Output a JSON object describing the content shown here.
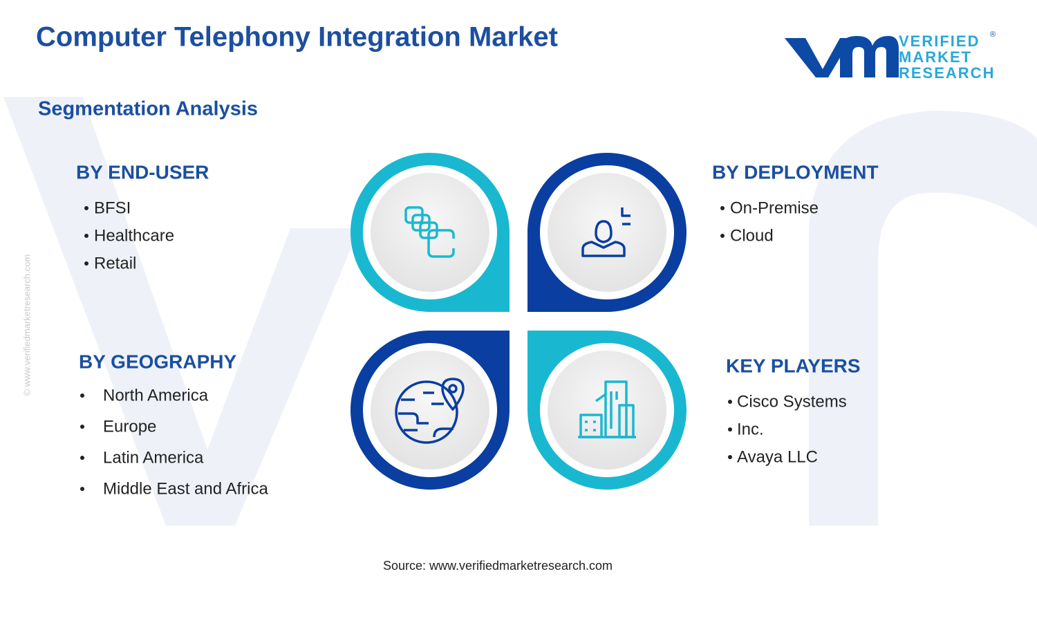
{
  "header": {
    "title": "Computer Telephony Integration Market",
    "subtitle": "Segmentation Analysis"
  },
  "logo": {
    "line1": "VERIFIED",
    "line2": "MARKET",
    "line3": "RESEARCH",
    "mark": "®"
  },
  "watermark": "© www.verifiedmarketresearch.com",
  "segments": [
    {
      "title": "BY END-USER",
      "items": [
        "BFSI",
        "Healthcare",
        "Retail"
      ]
    },
    {
      "title": "BY DEPLOYMENT",
      "items": [
        "On-Premise",
        "Cloud"
      ]
    },
    {
      "title": "BY GEOGRAPHY",
      "items": [
        "North America",
        "Europe",
        "Latin America",
        "Middle East and Africa"
      ]
    },
    {
      "title": "KEY PLAYERS",
      "items": [
        "Cisco Systems",
        "Inc.",
        "Avaya LLC"
      ]
    }
  ],
  "source": "Source: www.verifiedmarketresearch.com"
}
